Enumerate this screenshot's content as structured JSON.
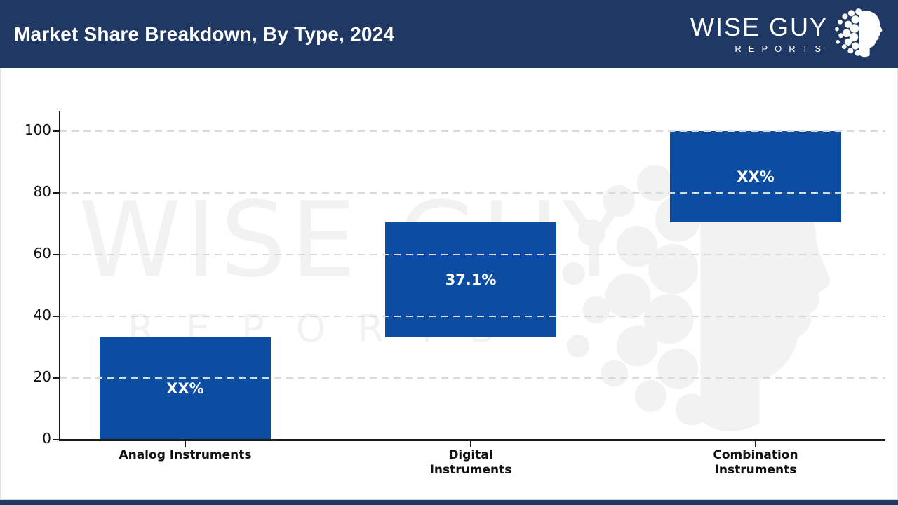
{
  "header": {
    "title": "Market Share Breakdown, By Type, 2024",
    "logo": {
      "wordmark": "WISE GUY",
      "subtitle": "REPORTS"
    }
  },
  "watermark": {
    "line1": "WISE GUY",
    "line2": "R E P O R T S"
  },
  "colors": {
    "header_bg": "#203864",
    "footer_bg": "#203864",
    "bar_fill": "#0D4DA1",
    "bar_label_text": "#FFFFFF",
    "gridline": "#DADADA",
    "axis": "#1A1A1A",
    "tick_text": "#111111",
    "watermark": "#F2F2F2"
  },
  "chart_data": {
    "type": "bar",
    "subtype": "floating stacked segments (waterfall-style market share, segments sum to 100%)",
    "title": "Market Share Breakdown, By Type, 2024",
    "categories": [
      "Analog Instruments",
      "Digital\nInstruments",
      "Combination\nInstruments"
    ],
    "bars": [
      {
        "category": "Analog Instruments",
        "start": 0,
        "end": 33.3,
        "value_label": "XX%"
      },
      {
        "category": "Digital Instruments",
        "start": 33.3,
        "end": 70.4,
        "value_label": "37.1%"
      },
      {
        "category": "Combination Instruments",
        "start": 70.4,
        "end": 100,
        "value_label": "XX%"
      }
    ],
    "xlabel": "",
    "ylabel": "",
    "yticks": [
      0,
      20,
      40,
      60,
      80,
      100
    ],
    "ylim": [
      0,
      105
    ],
    "grid": "horizontal dashed",
    "legend": "none"
  }
}
